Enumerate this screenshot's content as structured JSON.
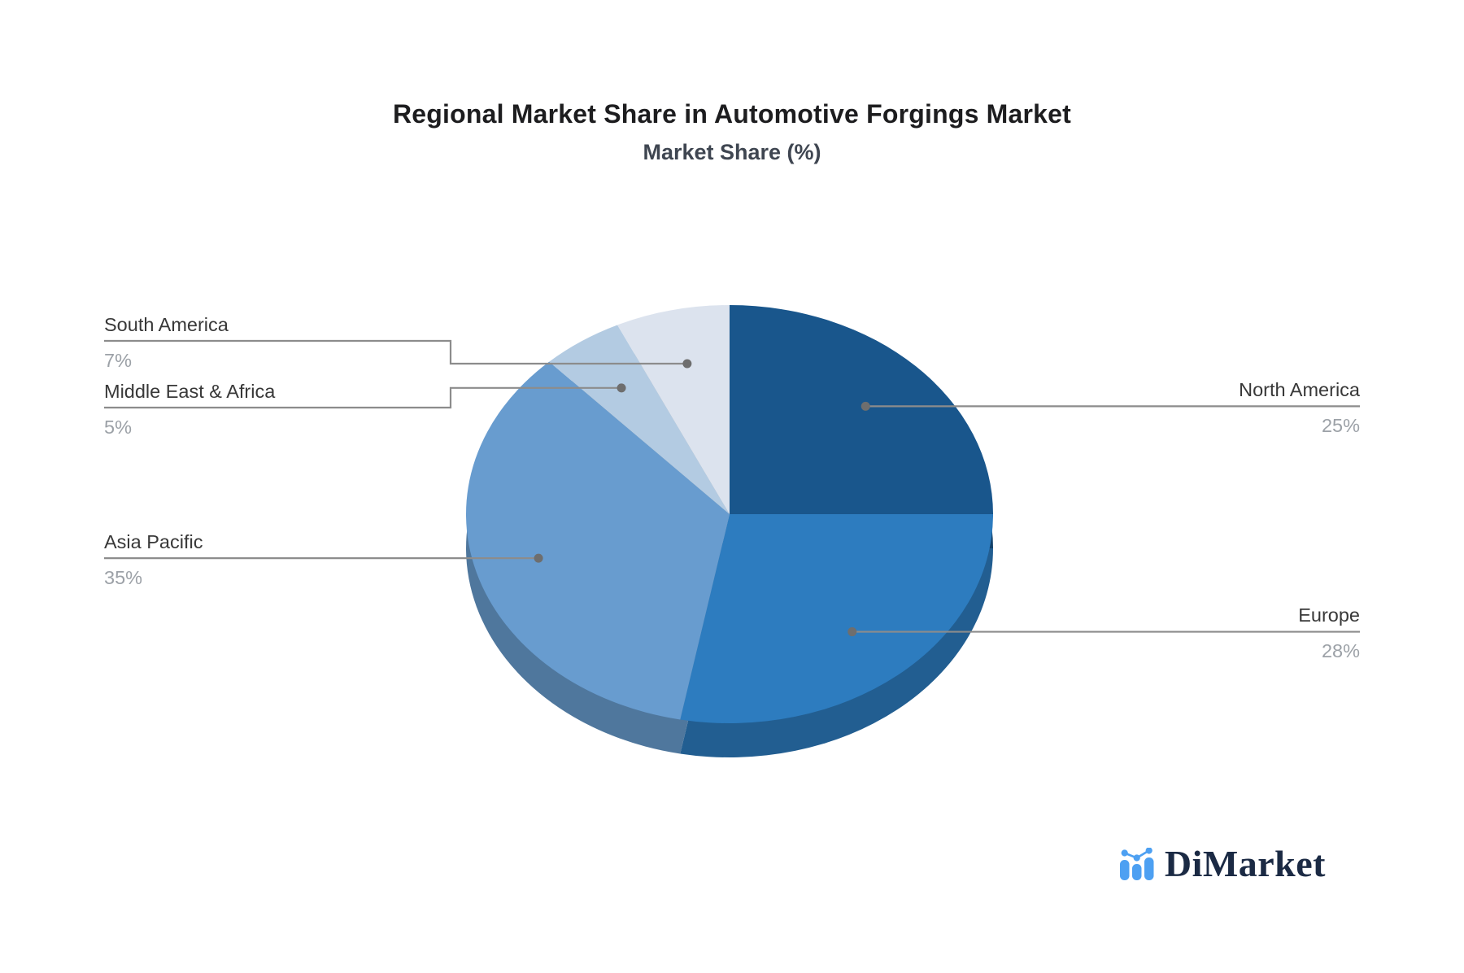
{
  "chart_data": {
    "type": "pie",
    "title": "Regional Market Share in Automotive Forgings Market",
    "subtitle": "Market Share (%)",
    "unit": "%",
    "direction": "clockwise",
    "start_angle_deg": 0,
    "effect": "3d-depth",
    "legend_position": "callout-labels",
    "slices": [
      {
        "label": "North America",
        "value": 25,
        "display": "25%",
        "color": "#19568C",
        "side": "right"
      },
      {
        "label": "Europe",
        "value": 28,
        "display": "28%",
        "color": "#2D7CBF",
        "side": "right"
      },
      {
        "label": "Asia Pacific",
        "value": 35,
        "display": "35%",
        "color": "#689CCF",
        "side": "left"
      },
      {
        "label": "Middle East & Africa",
        "value": 5,
        "display": "5%",
        "color": "#B3CBE2",
        "side": "left"
      },
      {
        "label": "South America",
        "value": 7,
        "display": "7%",
        "color": "#DCE3EE",
        "side": "left"
      }
    ]
  },
  "colors": {
    "background": "#FFFFFF",
    "title_color": "#1D1D1F",
    "subtitle_color": "#3F4651",
    "label_color": "#383838",
    "value_color": "#9CA1A7",
    "leader_line_color": "#8C8C8C",
    "leader_dot_color": "#6E6E6E"
  },
  "brand": {
    "name": "DiMarket",
    "icon": "bar-chart-trend-icon",
    "icon_color": "#4DA0F2",
    "text_color": "#1B2A44"
  }
}
